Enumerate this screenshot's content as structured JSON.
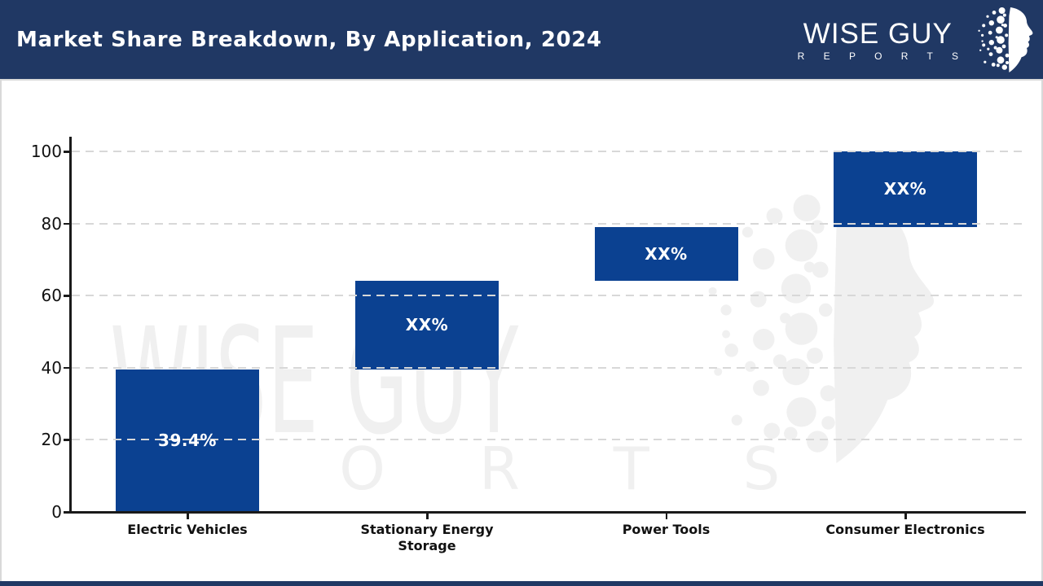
{
  "header": {
    "title": "Market Share Breakdown, By Application, 2024",
    "logo": {
      "brand_line1": "WISE GUY",
      "brand_line2": "R E P O R T S"
    }
  },
  "watermark": {
    "line1": "WISE GUY",
    "line2": "P O R T S"
  },
  "chart_data": {
    "type": "bar",
    "subtype": "waterfall",
    "title": "Market Share Breakdown, By Application, 2024",
    "categories": [
      "Electric Vehicles",
      "Stationary Energy Storage",
      "Power Tools",
      "Consumer Electronics"
    ],
    "segments": [
      {
        "category": "Electric Vehicles",
        "start": 0,
        "end": 39.4,
        "label": "39.4%"
      },
      {
        "category": "Stationary Energy Storage",
        "start": 39.4,
        "end": 64,
        "label": "XX%"
      },
      {
        "category": "Power Tools",
        "start": 64,
        "end": 79,
        "label": "XX%"
      },
      {
        "category": "Consumer Electronics",
        "start": 79,
        "end": 100,
        "label": "XX%"
      }
    ],
    "xlabel": "",
    "ylabel": "",
    "ylim": [
      0,
      100
    ],
    "yticks": [
      0,
      20,
      40,
      60,
      80,
      100
    ],
    "grid": "horizontal-dashed",
    "legend": "none"
  },
  "colors": {
    "header_bg": "#203864",
    "footer_bg": "#203864",
    "bar": "#0b4191",
    "bar_label": "#ffffff",
    "grid": "#d8d8d8",
    "axis": "#1a1a1a",
    "watermark": "#f0f0f0",
    "border": "#d9d9d9"
  }
}
